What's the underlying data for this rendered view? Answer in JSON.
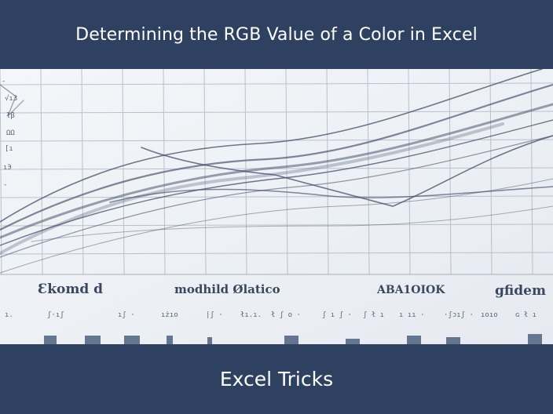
{
  "header": {
    "title": "Determining the RGB Value of a Color in Excel"
  },
  "footer": {
    "caption": "Excel Tricks"
  },
  "illustration": {
    "kind": "pencil-sketch-line-chart",
    "ink_color": "#3b4660",
    "paper_color": "#eef1f5",
    "banner_color": "#2e4160",
    "scribble_labels": [
      "Ɛkomd d",
      "modhild Ølatico",
      "ABA1OIOK",
      "gfidem"
    ]
  }
}
